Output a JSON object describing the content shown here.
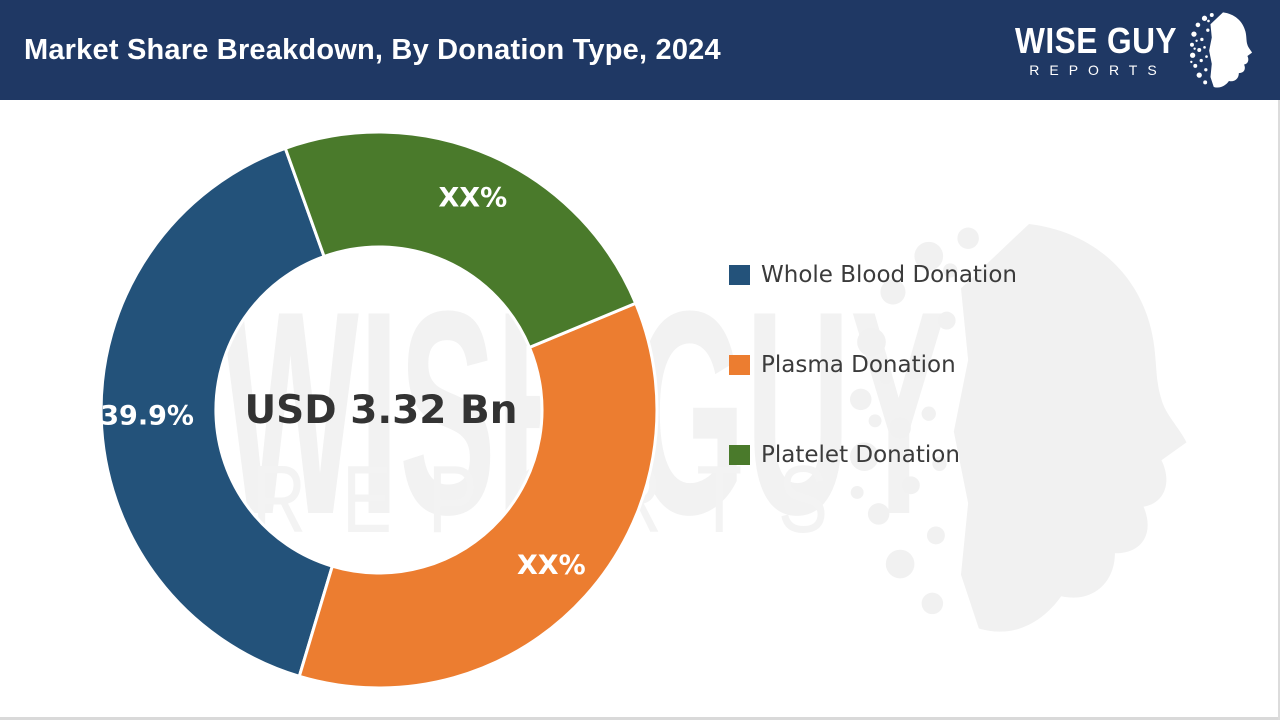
{
  "header": {
    "title": "Market Share Breakdown, By Donation Type, 2024",
    "bg_color": "#1F3864",
    "logo_line1": "WISE GUY",
    "logo_line2": "REPORTS"
  },
  "watermark": {
    "line1": "WISE GUY",
    "line2": "REPORTS"
  },
  "chart_data": {
    "type": "pie",
    "subtype": "donut",
    "title": "Market Share Breakdown, By Donation Type, 2024",
    "center_label": "USD 3.32 Bn",
    "start_angle_deg": 109.7,
    "direction": "counterclockwise",
    "inner_radius_ratio": 0.59,
    "legend_position": "right",
    "categories": [
      "Whole Blood Donation",
      "Plasma Donation",
      "Platelet Donation"
    ],
    "values": [
      39.9,
      35.9,
      24.2
    ],
    "segments": [
      {
        "label": "Whole Blood Donation",
        "value_pct": 39.9,
        "slice_label": "39.9%",
        "color": "#23527A"
      },
      {
        "label": "Plasma Donation",
        "value_pct": 35.9,
        "slice_label": "XX%",
        "color": "#EC7D30"
      },
      {
        "label": "Platelet Donation",
        "value_pct": 24.2,
        "slice_label": "XX%",
        "color": "#4A7A2B"
      }
    ]
  }
}
